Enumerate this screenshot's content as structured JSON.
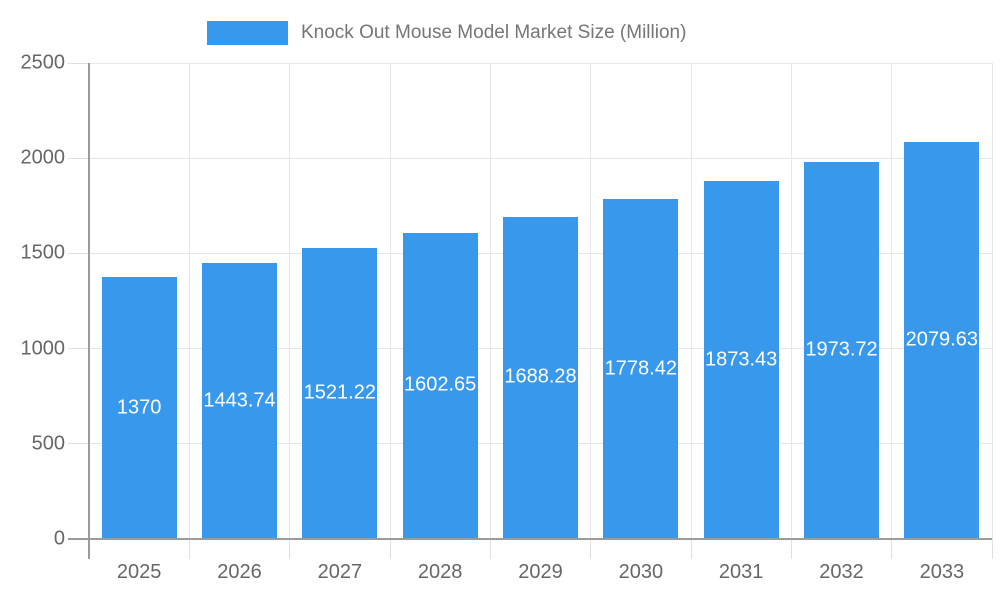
{
  "legend": {
    "position": "top",
    "swatch_color": "#3899EC"
  },
  "chart_data": {
    "type": "bar",
    "title": "Knock Out Mouse Model Market Size (Million)",
    "categories": [
      "2025",
      "2026",
      "2027",
      "2028",
      "2029",
      "2030",
      "2031",
      "2032",
      "2033"
    ],
    "values": [
      1370,
      1443.74,
      1521.22,
      1602.65,
      1688.28,
      1778.42,
      1873.43,
      1973.72,
      2079.63
    ],
    "value_labels": [
      "1370",
      "1443.74",
      "1521.22",
      "1602.65",
      "1688.28",
      "1778.42",
      "1873.43",
      "1973.72",
      "2079.63"
    ],
    "xlabel": "",
    "ylabel": "",
    "ylim": [
      0,
      2500
    ],
    "yticks": [
      0,
      500,
      1000,
      1500,
      2000,
      2500
    ],
    "grid": true,
    "legend_position": "top",
    "bar_color": "#3899EC",
    "bar_label_color": "#ffffff",
    "gridline_color": "#e6e6e6",
    "axis_color": "#9b9b9b",
    "axis_text_color": "#666666",
    "legend_text_color": "#757575"
  }
}
